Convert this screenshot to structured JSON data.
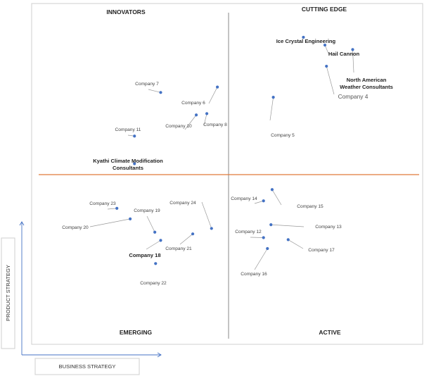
{
  "chart_data": {
    "type": "scatter",
    "xlabel": "BUSINESS STRATEGY",
    "ylabel": "PRODUCT STRATEGY",
    "quadrants": {
      "top_left": "INNOVATORS",
      "top_right": "CUTTING EDGE",
      "bottom_left": "EMERGING",
      "bottom_right": "ACTIVE"
    },
    "colors": {
      "point": "#4472c4",
      "vertical_divider": "#888888",
      "horizontal_divider": "#e07a3b",
      "frame": "#cfcfcf",
      "leader": "#999999"
    },
    "xlim": [
      0,
      100
    ],
    "ylim": [
      0,
      100
    ],
    "points": [
      {
        "label": "Ice Crystal Engineering",
        "x": 69.5,
        "y": 90.1,
        "style": "bold"
      },
      {
        "label": "Hail Cannon",
        "x": 75.0,
        "y": 87.8,
        "style": "bold"
      },
      {
        "label": "North American Weather Consultants",
        "x": 82.1,
        "y": 86.5,
        "style": "bold"
      },
      {
        "label": "Company 4",
        "x": 75.4,
        "y": 81.6,
        "style": "mid"
      },
      {
        "label": "Company 5",
        "x": 61.8,
        "y": 72.5
      },
      {
        "label": "Company 6",
        "x": 47.5,
        "y": 75.5
      },
      {
        "label": "Company 7",
        "x": 33.0,
        "y": 73.9
      },
      {
        "label": "Company 8",
        "x": 44.8,
        "y": 67.7
      },
      {
        "label": "Company 10",
        "x": 42.1,
        "y": 67.3
      },
      {
        "label": "Company 11",
        "x": 26.3,
        "y": 61.1
      },
      {
        "label": "Kyathi Climate Modification Consultants",
        "x": 26.3,
        "y": 53.0,
        "style": "bold"
      },
      {
        "label": "Company 14",
        "x": 59.3,
        "y": 42.1
      },
      {
        "label": "Company 15",
        "x": 61.5,
        "y": 45.4
      },
      {
        "label": "Company 13",
        "x": 61.2,
        "y": 35.1
      },
      {
        "label": "Company 12",
        "x": 59.3,
        "y": 31.3
      },
      {
        "label": "Company 17",
        "x": 65.6,
        "y": 30.7
      },
      {
        "label": "Company 16",
        "x": 60.3,
        "y": 28.1
      },
      {
        "label": "Company 23",
        "x": 21.8,
        "y": 39.9
      },
      {
        "label": "Company 20",
        "x": 25.2,
        "y": 36.8
      },
      {
        "label": "Company 19",
        "x": 31.5,
        "y": 32.9
      },
      {
        "label": "Company 24",
        "x": 46.0,
        "y": 34.0
      },
      {
        "label": "Company 21",
        "x": 41.2,
        "y": 32.4
      },
      {
        "label": "Company 18",
        "x": 33.0,
        "y": 30.5,
        "style": "bold"
      },
      {
        "label": "Company 22",
        "x": 31.7,
        "y": 23.7
      }
    ]
  }
}
